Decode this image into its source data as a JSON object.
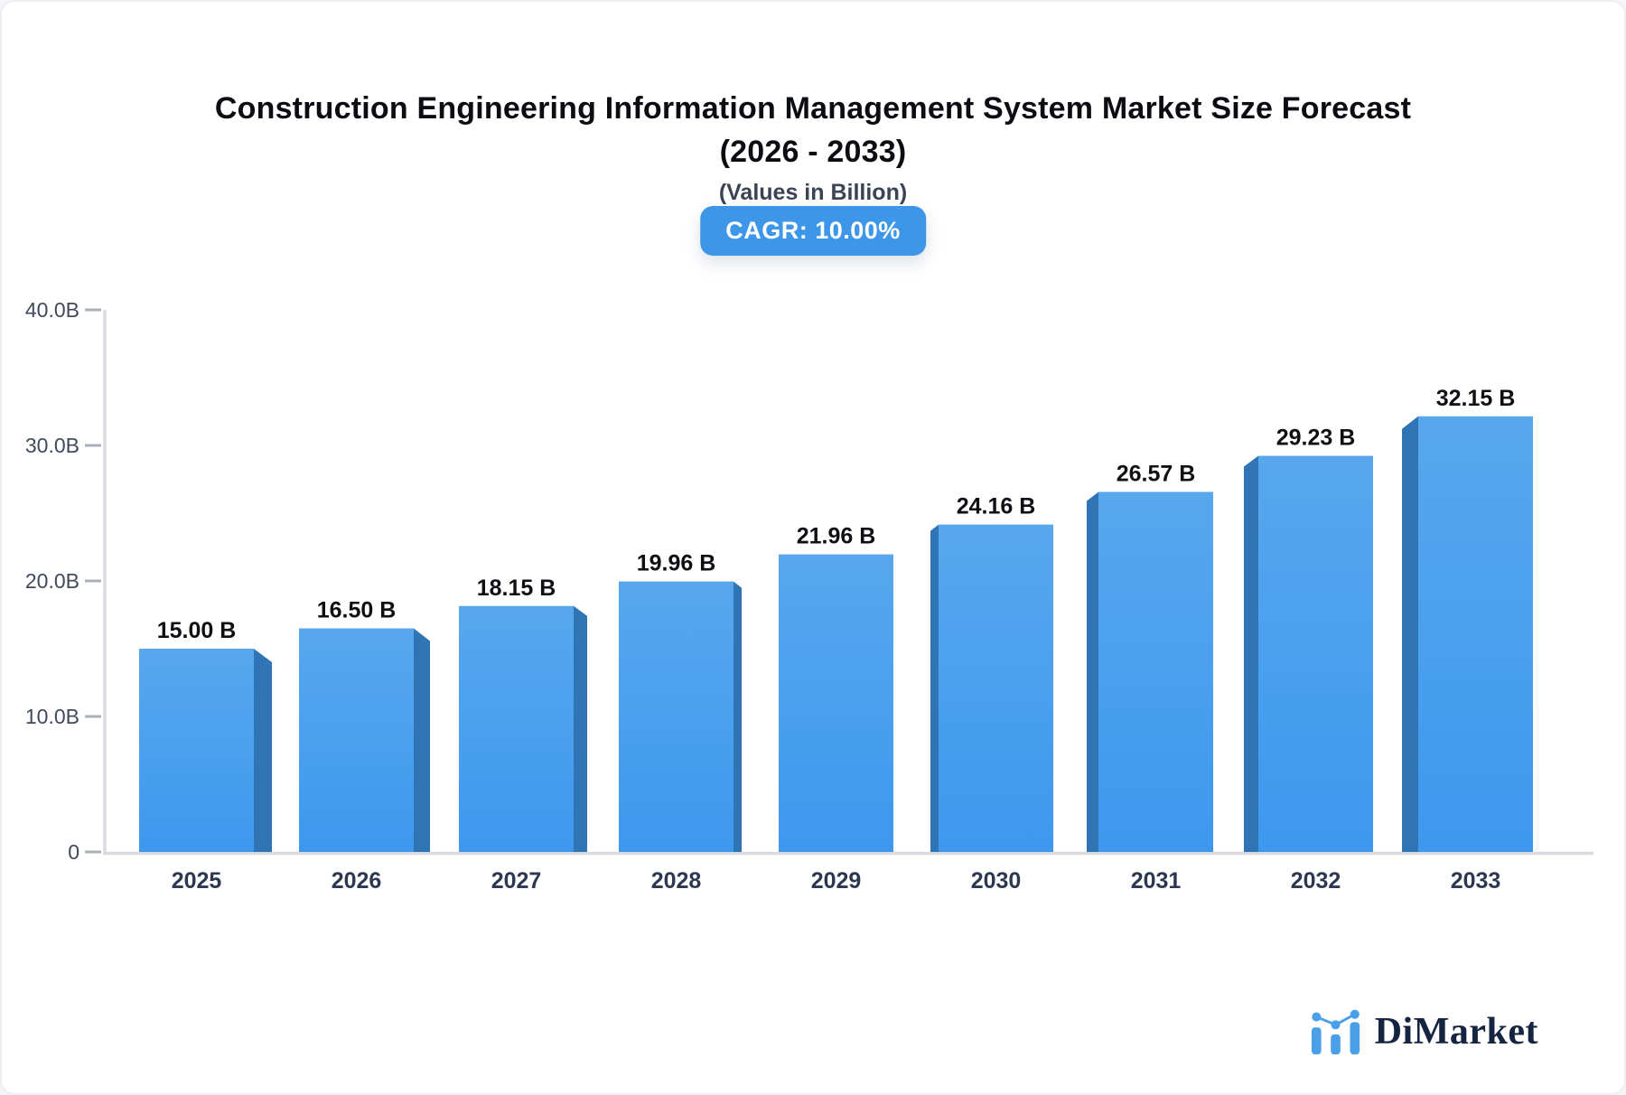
{
  "title": {
    "line1": "Construction Engineering Information Management System Market Size Forecast",
    "line2": "(2026 - 2033)"
  },
  "subtitle": "(Values in Billion)",
  "badge": {
    "label": "CAGR: 10.00%"
  },
  "logo": {
    "text": "DiMarket",
    "icon": "bar-chart-logo-icon"
  },
  "colors": {
    "title_text": "#0b0d12",
    "subtitle_text": "#3b4454",
    "badge_bg": "#3e96e9",
    "badge_text": "#ffffff",
    "bar_front_top": "#58a7ed",
    "bar_front_bottom": "#3e98ef",
    "bar_side": "#2f74b5",
    "axis_line": "#d8dbe0",
    "tick_dash": "#a9b0ba",
    "tick_text": "#3f4a5c",
    "year_text": "#2c3850",
    "value_text": "#0e1013",
    "logo_text": "#152440",
    "logo_icon": "#4aa0e8"
  },
  "chart_data": {
    "type": "bar",
    "title": "Construction Engineering Information Management System Market Size Forecast (2026 - 2033)",
    "subtitle": "(Values in Billion)",
    "cagr": "10.00%",
    "unit": "Billion",
    "categories": [
      "2025",
      "2026",
      "2027",
      "2028",
      "2029",
      "2030",
      "2031",
      "2032",
      "2033"
    ],
    "values": [
      15.0,
      16.5,
      18.15,
      19.96,
      21.96,
      24.16,
      26.57,
      29.23,
      32.15
    ],
    "value_labels": [
      "15.00 B",
      "16.50 B",
      "18.15 B",
      "19.96 B",
      "21.96 B",
      "24.16 B",
      "26.57 B",
      "29.23 B",
      "32.15 B"
    ],
    "ylim": [
      0,
      40
    ],
    "yticks": [
      {
        "value": 0,
        "label": "0"
      },
      {
        "value": 10,
        "label": "10.0B"
      },
      {
        "value": 20,
        "label": "20.0B"
      },
      {
        "value": 30,
        "label": "30.0B"
      },
      {
        "value": 40,
        "label": "40.0B"
      }
    ],
    "grid": false,
    "legend": "none",
    "bar_style": "3d-perspective"
  }
}
